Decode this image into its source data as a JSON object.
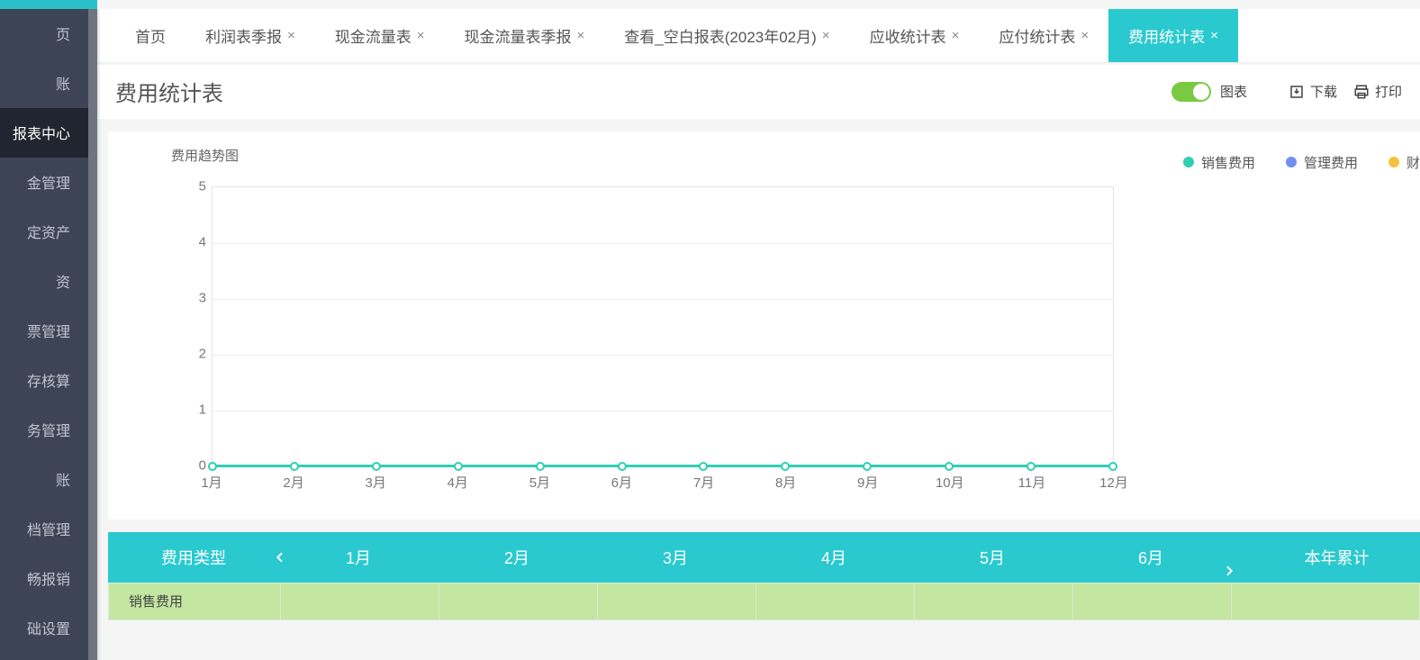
{
  "sidebar": {
    "bg": "#3d4455",
    "active_bg": "#20252f",
    "items": [
      {
        "label": "页"
      },
      {
        "label": "账"
      },
      {
        "label": "报表中心",
        "active": true
      },
      {
        "label": "金管理"
      },
      {
        "label": "定资产"
      },
      {
        "label": "资"
      },
      {
        "label": "票管理"
      },
      {
        "label": "存核算"
      },
      {
        "label": "务管理"
      },
      {
        "label": "账"
      },
      {
        "label": "档管理"
      },
      {
        "label": "畅报销"
      },
      {
        "label": "础设置"
      }
    ]
  },
  "tabs": [
    {
      "label": "首页",
      "closable": false
    },
    {
      "label": "利润表季报",
      "closable": true
    },
    {
      "label": "现金流量表",
      "closable": true
    },
    {
      "label": "现金流量表季报",
      "closable": true
    },
    {
      "label": "查看_空白报表(2023年02月)",
      "closable": true
    },
    {
      "label": "应收统计表",
      "closable": true
    },
    {
      "label": "应付统计表",
      "closable": true
    },
    {
      "label": "费用统计表",
      "closable": true,
      "active": true
    }
  ],
  "header": {
    "title": "费用统计表",
    "toggle_label": "图表",
    "download": "下载",
    "print": "打印"
  },
  "chart": {
    "title": "费用趋势图",
    "type": "line",
    "background_color": "#ffffff",
    "grid_color": "#eeeeee",
    "border_color": "#e5e5e5",
    "axis_font_size": 15,
    "axis_text_color": "#777777",
    "y": {
      "min": 0,
      "max": 5,
      "step": 1,
      "ticks": [
        0,
        1,
        2,
        3,
        4,
        5
      ]
    },
    "x_labels": [
      "1月",
      "2月",
      "3月",
      "4月",
      "5月",
      "6月",
      "7月",
      "8月",
      "9月",
      "10月",
      "11月",
      "12月"
    ],
    "legend": [
      {
        "name": "销售费用",
        "color": "#2fcfb2"
      },
      {
        "name": "管理费用",
        "color": "#6f8ff5"
      },
      {
        "name": "财",
        "color": "#f5c23e"
      }
    ],
    "series": [
      {
        "name": "销售费用",
        "color": "#2fcfb2",
        "line_width": 3,
        "marker": "hollow-circle",
        "values": [
          0,
          0,
          0,
          0,
          0,
          0,
          0,
          0,
          0,
          0,
          0,
          0
        ]
      }
    ]
  },
  "table": {
    "header_bg": "#29c9cf",
    "header_text_color": "#ffffff",
    "row_even_bg": "#c3e6a1",
    "first_col": "费用类型",
    "months": [
      "1月",
      "2月",
      "3月",
      "4月",
      "5月",
      "6月"
    ],
    "total_col": "本年累计",
    "rows": [
      {
        "type": "销售费用",
        "cells": [
          "",
          "",
          "",
          "",
          "",
          ""
        ],
        "total": ""
      }
    ]
  }
}
